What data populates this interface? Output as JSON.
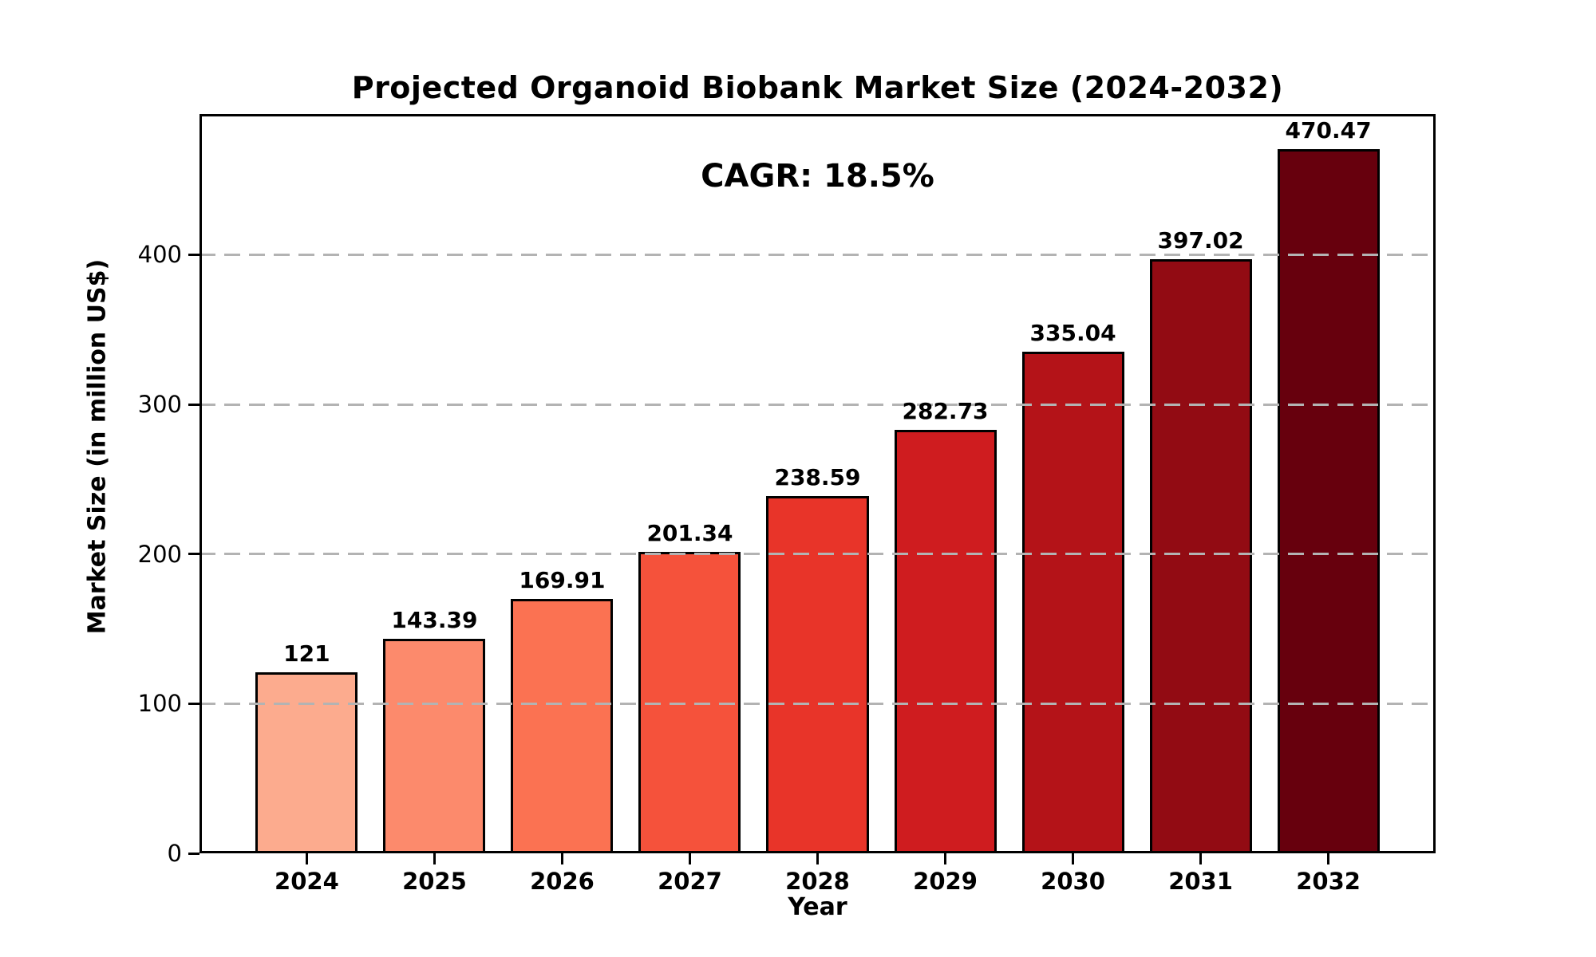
{
  "title": "Projected Organoid Biobank Market Size (2024-2032)",
  "annotation": "CAGR: 18.5%",
  "chart_data": {
    "type": "bar",
    "title": "Projected Organoid Biobank Market Size (2024-2032)",
    "annotation": "CAGR: 18.5%",
    "categories": [
      "2024",
      "2025",
      "2026",
      "2027",
      "2028",
      "2029",
      "2030",
      "2031",
      "2032"
    ],
    "values": [
      121,
      143.39,
      169.91,
      201.34,
      238.59,
      282.73,
      335.04,
      397.02,
      470.47
    ],
    "xlabel": "Year",
    "ylabel": "Market Size (in million US$)",
    "ylim": [
      0,
      494
    ],
    "yticks": [
      0,
      100,
      200,
      300,
      400
    ],
    "grid": "horizontal dashed, drawn over bars",
    "legend": "none",
    "bar_colors": [
      "#fcab8e",
      "#fc8a6c",
      "#fb7252",
      "#f5523b",
      "#e83429",
      "#cf1c1f",
      "#b41318",
      "#920b13",
      "#67000d"
    ],
    "bar_edge_color": "#000000",
    "grid_color": "#b3b3b3",
    "background": "#ffffff"
  }
}
